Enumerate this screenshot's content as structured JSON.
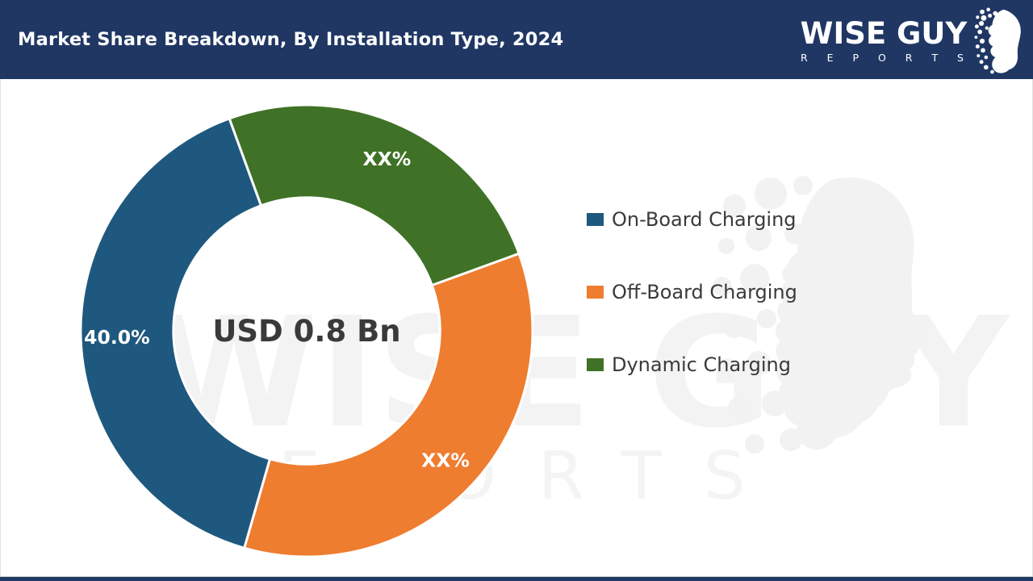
{
  "header": {
    "title": "Market Share Breakdown, By Installation Type, 2024",
    "bg_color": "#203764",
    "logo": {
      "line1": "WISE GUY",
      "line2": "R E P O R T S"
    }
  },
  "watermark": {
    "line1": "WISE GUY",
    "line2": "REPORTS"
  },
  "chart_data": {
    "type": "pie",
    "subtype": "donut",
    "title": "Market Share Breakdown, By Installation Type, 2024",
    "center_label": "USD 0.8 Bn",
    "categories": [
      "On-Board Charging",
      "Off-Board Charging",
      "Dynamic Charging"
    ],
    "values": [
      40,
      35,
      25
    ],
    "slice_labels": [
      "40.0%",
      "XX%",
      "XX%"
    ],
    "colors": [
      "#1f587e",
      "#ee7d30",
      "#3f7226"
    ],
    "start_angle": 110,
    "direction": "counterclockwise",
    "donut_hole_ratio": 0.59,
    "legend_position": "right",
    "slice_label_color": "#ffffff",
    "center_label_color": "#3a3a3a"
  },
  "legend": {
    "items": [
      {
        "label": "On-Board Charging",
        "color": "#1f587e"
      },
      {
        "label": "Off-Board Charging",
        "color": "#ee7d30"
      },
      {
        "label": "Dynamic Charging",
        "color": "#3f7226"
      }
    ]
  },
  "footer": {
    "bar_color": "#203764"
  }
}
